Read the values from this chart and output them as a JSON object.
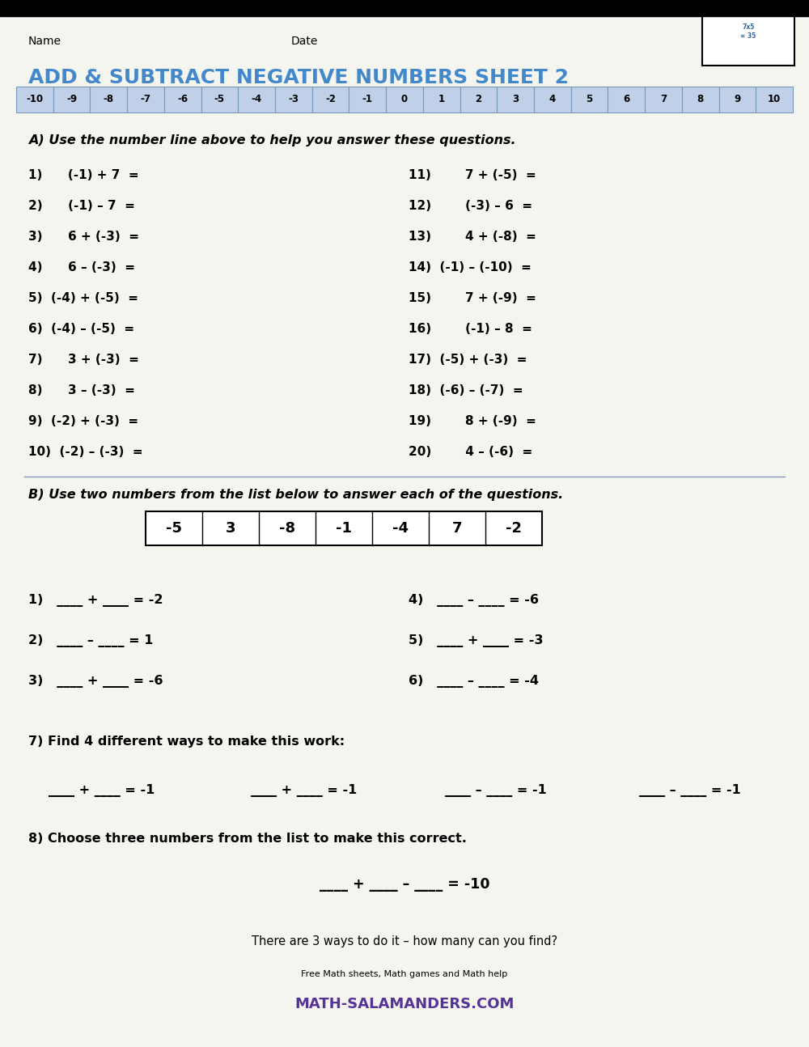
{
  "title": "ADD & SUBTRACT NEGATIVE NUMBERS SHEET 2",
  "title_color": "#4488cc",
  "bg_color": "#f5f5f0",
  "header_bar_color": "#c0d0e8",
  "name_label": "Name",
  "date_label": "Date",
  "number_line": [
    -10,
    -9,
    -8,
    -7,
    -6,
    -5,
    -4,
    -3,
    -2,
    -1,
    0,
    1,
    2,
    3,
    4,
    5,
    6,
    7,
    8,
    9,
    10
  ],
  "section_a_title": "A) Use the number line above to help you answer these questions.",
  "questions_left": [
    "1)      (-1) + 7  =",
    "2)      (-1) – 7  =",
    "3)      6 + (-3)  =",
    "4)      6 – (-3)  =",
    "5)  (-4) + (-5)  =",
    "6)  (-4) – (-5)  =",
    "7)      3 + (-3)  =",
    "8)      3 – (-3)  =",
    "9)  (-2) + (-3)  =",
    "10)  (-2) – (-3)  ="
  ],
  "questions_right": [
    "11)        7 + (-5)  =",
    "12)        (-3) – 6  =",
    "13)        4 + (-8)  =",
    "14)  (-1) – (-10)  =",
    "15)        7 + (-9)  =",
    "16)        (-1) – 8  =",
    "17)  (-5) + (-3)  =",
    "18)  (-6) – (-7)  =",
    "19)        8 + (-9)  =",
    "20)        4 – (-6)  ="
  ],
  "section_b_title": "B) Use two numbers from the list below to answer each of the questions.",
  "number_box": [
    "-5",
    "3",
    "-8",
    "-1",
    "-4",
    "7",
    "-2"
  ],
  "b_questions_left": [
    "1)   ____ + ____ = -2",
    "2)   ____ – ____ = 1",
    "3)   ____ + ____ = -6"
  ],
  "b_questions_right": [
    "4)   ____ – ____ = -6",
    "5)   ____ + ____ = -3",
    "6)   ____ – ____ = -4"
  ],
  "q7_text": "7) Find 4 different ways to make this work:",
  "q7_expressions": [
    "____ + ____ = -1",
    "____ + ____ = -1",
    "____ – ____ = -1",
    "____ – ____ = -1"
  ],
  "q8_text": "8) Choose three numbers from the list to make this correct.",
  "q8_expression": "____ + ____ – ____ = -10",
  "footer_text1": "There are 3 ways to do it – how many can you find?",
  "footer_text2": "Free Math sheets, Math games and Math help",
  "footer_text3": "MATH-SALAMANDERS.COM"
}
